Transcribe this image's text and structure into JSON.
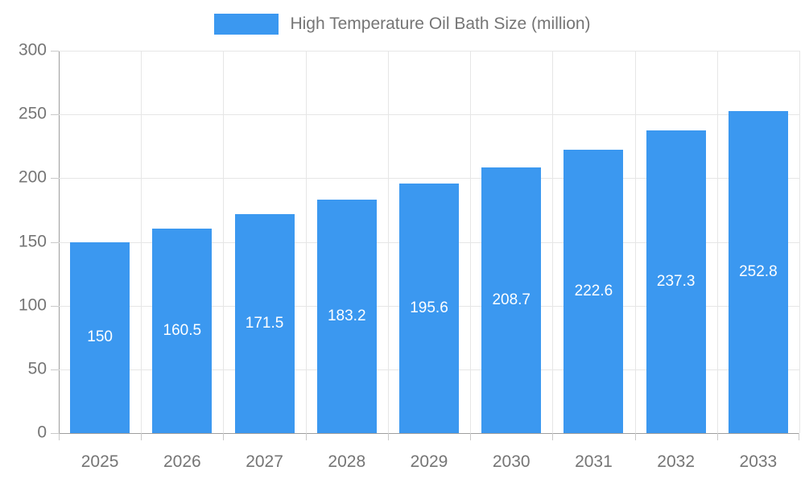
{
  "legend": {
    "label": "High Temperature Oil Bath Size (million)"
  },
  "chart_data": {
    "type": "bar",
    "title": "High Temperature Oil Bath Size (million)",
    "categories": [
      "2025",
      "2026",
      "2027",
      "2028",
      "2029",
      "2030",
      "2031",
      "2032",
      "2033"
    ],
    "values": [
      150,
      160.5,
      171.5,
      183.2,
      195.6,
      208.7,
      222.6,
      237.3,
      252.8
    ],
    "value_labels": [
      "150",
      "160.5",
      "171.5",
      "183.2",
      "195.6",
      "208.7",
      "222.6",
      "237.3",
      "252.8"
    ],
    "series_name": "High Temperature Oil Bath Size (million)",
    "xlabel": "",
    "ylabel": "",
    "ylim": [
      0,
      300
    ],
    "yticks": [
      0,
      50,
      100,
      150,
      200,
      250,
      300
    ],
    "grid": true,
    "legend_position": "top-center",
    "colors": {
      "bar": "#3b98f0",
      "bar_label": "#ffffff",
      "axis": "#9e9e9e",
      "tick": "#c9c9c9",
      "grid": "#e6e6e6",
      "text": "#757575"
    }
  }
}
